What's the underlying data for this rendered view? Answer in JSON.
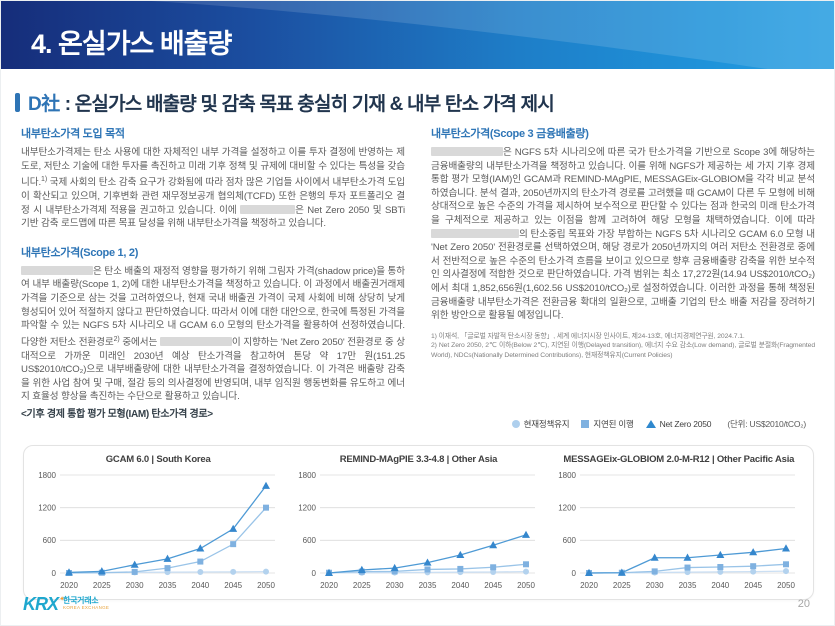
{
  "header": {
    "title": "4. 온실가스 배출량"
  },
  "subtitle": {
    "company": "D社",
    "text": ": 온실가스 배출량 및 감축 목표 충실히 기재 & 내부 탄소 가격 제시"
  },
  "left": {
    "intro": {
      "heading": "내부탄소가격 도입 목적",
      "s1": "내부탄소가격제는 탄소 사용에 대한 자체적인 내부 가격을 설정하고 이를 투자 결정에 반영하는 제도로, 저탄소 기술에 대한 투자를 촉진하고 미래 기후 정책 및 규제에 대비할 수 있다는 특성을 갖습니다.",
      "ref": "1)",
      "s2": " 국제 사회의 탄소 감축 요구가 강화됨에 따라 점차 많은 기업들 사이에서 내부탄소가격 도입이 확산되고 있으며, 기후변화 관련 재무정보공개 협의체(TCFD) 또한 은행의 투자 포트폴리오 결정 시 내부탄소가격제 적용을 권고하고 있습니다. 이에 ",
      "s3": "은 Net Zero 2050 및 SBTi 기반 감축 로드맵에 따른 목표 달성을 위해 내부탄소가격을 책정하고 있습니다."
    },
    "scope12": {
      "heading": "내부탄소가격(Scope 1, 2)",
      "s1": "은 탄소 배출의 재정적 영향을 평가하기 위해 그림자 가격(shadow price)을 통하여 내부 배출량(Scope 1, 2)에 대한 내부탄소가격을 책정하고 있습니다. 이 과정에서 배출권거래제 가격을 기준으로 삼는 것을 고려하였으나, 현재 국내 배출권 가격이 국제 사회에 비해 상당히 낮게 형성되어 있어 적절하지 않다고 판단하였습니다. 따라서 이에 대한 대안으로, 한국에 특정된 가격을 파악할 수 있는 NGFS 5차 시나리오 내 GCAM 6.0 모형의 탄소가격을 활용하여 선정하였습니다. 다양한 저탄소 전환경로",
      "ref": "2)",
      "s2": " 중에서는 ",
      "s3": "이 지향하는 'Net Zero 2050' 전환경로 중 상대적으로 가까운 미래인 2030년 예상 탄소가격을 참고하여 톤당 약 17만 원(151.25 US$2010/tCO₂)으로 내부배출량에 대한 내부탄소가격을 결정하였습니다. 이 가격은 배출량 감축을 위한 사업 참여 및 구매, 절감 등의 의사결정에 반영되며, 내부 임직원 행동변화를 유도하고 에너지 효율성 향상을 촉진하는 수단으로 활용하고 있습니다."
    },
    "chart_label": "<기후 경제 통합 평가 모형(IAM) 탄소가격 경로>"
  },
  "right": {
    "scope3": {
      "heading": "내부탄소가격(Scope 3 금융배출량)",
      "s1": "은 NGFS 5차 시나리오에 따른 국가 탄소가격을 기반으로 Scope 3에 해당하는 금융배출량의 내부탄소가격을 책정하고 있습니다. 이를 위해 NGFS가 제공하는 세 가지 기후 경제 통합 평가 모형(IAM)인 GCAM과 REMIND-MAgPIE, MESSAGEix-GLOBIOM을 각각 비교 분석하였습니다. 분석 결과, 2050년까지의 탄소가격 경로를 고려했을 때 GCAM이 다른 두 모형에 비해 상대적으로 높은 수준의 가격을 제시하여 보수적으로 판단할 수 있다는 점과 한국의 미래 탄소가격을 구체적으로 제공하고 있는 이점을 함께 고려하여 해당 모형을 채택하였습니다. 이에 따라 ",
      "s2": "의 탄소중립 목표와 가장 부합하는 NGFS 5차 시나리오 GCAM 6.0 모형 내 'Net Zero 2050' 전환경로를 선택하였으며, 해당 경로가 2050년까지의 여러 저탄소 전환경로 중에서 전반적으로 높은 수준의 탄소가격 흐름을 보이고 있으므로 향후 금융배출량 감축을 위한 보수적인 의사결정에 적합한 것으로 판단하였습니다. 가격 범위는 최소 17,272원(14.94 US$2010/tCO₂)에서 최대 1,852,656원(1,602.56 US$2010/tCO₂)로 설정하였습니다. 이러한 과정을 통해 책정된 금융배출량 내부탄소가격은 전환금융 확대의 일환으로, 고배출 기업의 탄소 배출 저감을 장려하기 위한 방안으로 활용될 예정입니다."
    },
    "footnotes": {
      "f1": "1) 이재석, 「글로벌 자발적 탄소시장 동향」, 세계 에너지시장 인사이트, 제24-13호, 에너지경제연구원, 2024.7.1.",
      "f2": "2) Net Zero 2050, 2℃ 이하(Below 2℃), 지연된 이행(Delayed transition), 에너지 수요 감소(Low demand), 글로벌 분절화(Fragmented World), NDCs(Nationally Determined Contributions), 현재정책유지(Current Policies)"
    }
  },
  "legend": {
    "items": [
      {
        "label": "현재정책유지",
        "marker": "circle",
        "color": "#AECFED"
      },
      {
        "label": "지연된 이행",
        "marker": "square",
        "color": "#7FB1E0"
      },
      {
        "label": "Net Zero 2050",
        "marker": "triangle",
        "color": "#2F88CE"
      }
    ],
    "unit": "(단위: US$2010/tCO₂)"
  },
  "chart_data": [
    {
      "type": "line",
      "title": "GCAM 6.0 | South Korea",
      "categories": [
        "2020",
        "2025",
        "2030",
        "2035",
        "2040",
        "2045",
        "2050"
      ],
      "ylabel": "US$2010/tCO₂",
      "ylim": [
        0,
        1800
      ],
      "yticks": [
        0,
        600,
        1200,
        1800
      ],
      "grid": true,
      "legend_position": "top-right-shared",
      "series": [
        {
          "name": "현재정책유지",
          "marker": "circle",
          "color": "#B3D2EE",
          "line_color": "#CBDFF3",
          "values": [
            5,
            8,
            12,
            15,
            18,
            20,
            25
          ]
        },
        {
          "name": "지연된 이행",
          "marker": "square",
          "color": "#7FB1E0",
          "line_color": "#9AC4E8",
          "values": [
            0,
            5,
            20,
            90,
            210,
            530,
            1200
          ]
        },
        {
          "name": "Net Zero 2050",
          "marker": "triangle",
          "color": "#3587CD",
          "line_color": "#4E9AD5",
          "values": [
            10,
            30,
            151,
            260,
            450,
            810,
            1600
          ]
        }
      ]
    },
    {
      "type": "line",
      "title": "REMIND-MAgPIE 3.3-4.8 | Other Asia",
      "categories": [
        "2020",
        "2025",
        "2030",
        "2035",
        "2040",
        "2045",
        "2050"
      ],
      "ylabel": "US$2010/tCO₂",
      "ylim": [
        0,
        1800
      ],
      "yticks": [
        0,
        600,
        1200,
        1800
      ],
      "grid": true,
      "series": [
        {
          "name": "현재정책유지",
          "marker": "circle",
          "color": "#B3D2EE",
          "line_color": "#CBDFF3",
          "values": [
            2,
            5,
            8,
            12,
            15,
            18,
            25
          ]
        },
        {
          "name": "지연된 이행",
          "marker": "square",
          "color": "#7FB1E0",
          "line_color": "#9AC4E8",
          "values": [
            5,
            25,
            30,
            65,
            75,
            105,
            160
          ]
        },
        {
          "name": "Net Zero 2050",
          "marker": "triangle",
          "color": "#3587CD",
          "line_color": "#4E9AD5",
          "values": [
            0,
            55,
            90,
            190,
            330,
            510,
            700
          ]
        }
      ]
    },
    {
      "type": "line",
      "title": "MESSAGEix-GLOBIOM 2.0-M-R12 | Other Pacific Asia",
      "categories": [
        "2020",
        "2025",
        "2030",
        "2035",
        "2040",
        "2045",
        "2050"
      ],
      "ylabel": "US$2010/tCO₂",
      "ylim": [
        0,
        1800
      ],
      "yticks": [
        0,
        600,
        1200,
        1800
      ],
      "grid": true,
      "series": [
        {
          "name": "현재정책유지",
          "marker": "circle",
          "color": "#B3D2EE",
          "line_color": "#CBDFF3",
          "values": [
            0,
            3,
            8,
            15,
            20,
            25,
            35
          ]
        },
        {
          "name": "지연된 이행",
          "marker": "square",
          "color": "#7FB1E0",
          "line_color": "#9AC4E8",
          "values": [
            0,
            5,
            30,
            100,
            110,
            125,
            160
          ]
        },
        {
          "name": "Net Zero 2050",
          "marker": "triangle",
          "color": "#3587CD",
          "line_color": "#4E9AD5",
          "values": [
            0,
            5,
            280,
            280,
            330,
            380,
            450
          ]
        }
      ]
    }
  ],
  "footer": {
    "logo_text": "KRX",
    "logo_spark": "✦",
    "logo_korean": "한국거래소",
    "logo_english": "KOREA EXCHANGE",
    "page_number": "20"
  }
}
